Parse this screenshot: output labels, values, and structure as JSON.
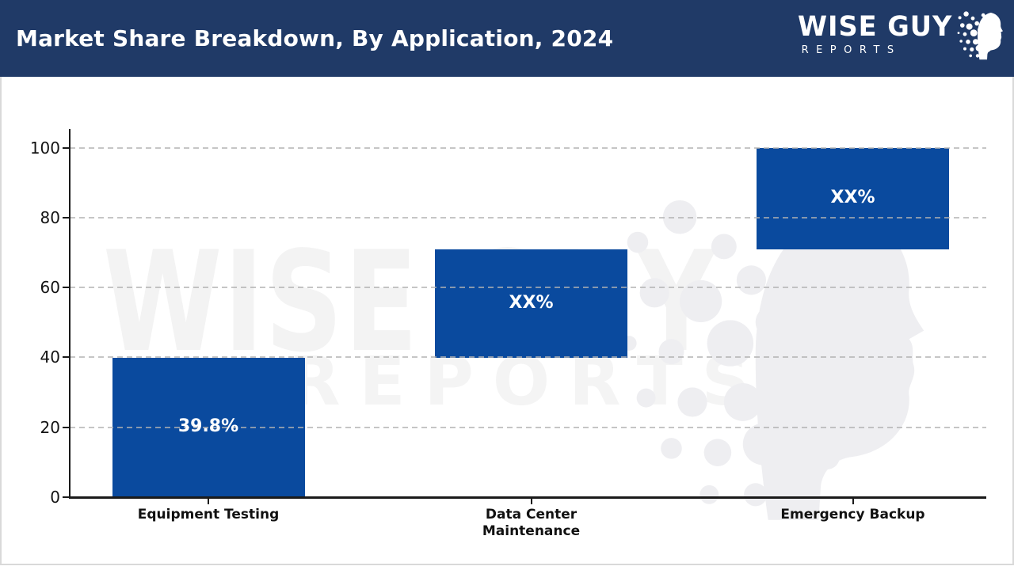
{
  "header": {
    "title": "Market Share Breakdown, By Application, 2024",
    "brand": {
      "name_top": "WISE GUY",
      "name_bottom": "REPORTS"
    },
    "bg_color": "#203a67"
  },
  "watermark": {
    "line1": "WISE GUY",
    "line2": "REPORTS"
  },
  "chart_data": {
    "type": "bar",
    "subtype": "stacked-waterfall-segments",
    "title": "Market Share Breakdown, By Application, 2024",
    "categories": [
      "Equipment Testing",
      "Data Center\nMaintenance",
      "Emergency Backup"
    ],
    "segments": [
      {
        "category": "Equipment Testing",
        "start": 0,
        "end": 39.8,
        "label": "39.8%"
      },
      {
        "category": "Data Center Maintenance",
        "start": 39.8,
        "end": 70.8,
        "label": "XX%"
      },
      {
        "category": "Emergency Backup",
        "start": 70.8,
        "end": 100,
        "label": "XX%"
      }
    ],
    "ylim": [
      0,
      100
    ],
    "yticks": [
      0,
      20,
      40,
      60,
      80,
      100
    ],
    "grid": "dashed-horizontal",
    "legend": "none",
    "bar_color": "#0a4a9e",
    "bar_label_color": "#ffffff",
    "axis_color": "#1a1a1a"
  }
}
